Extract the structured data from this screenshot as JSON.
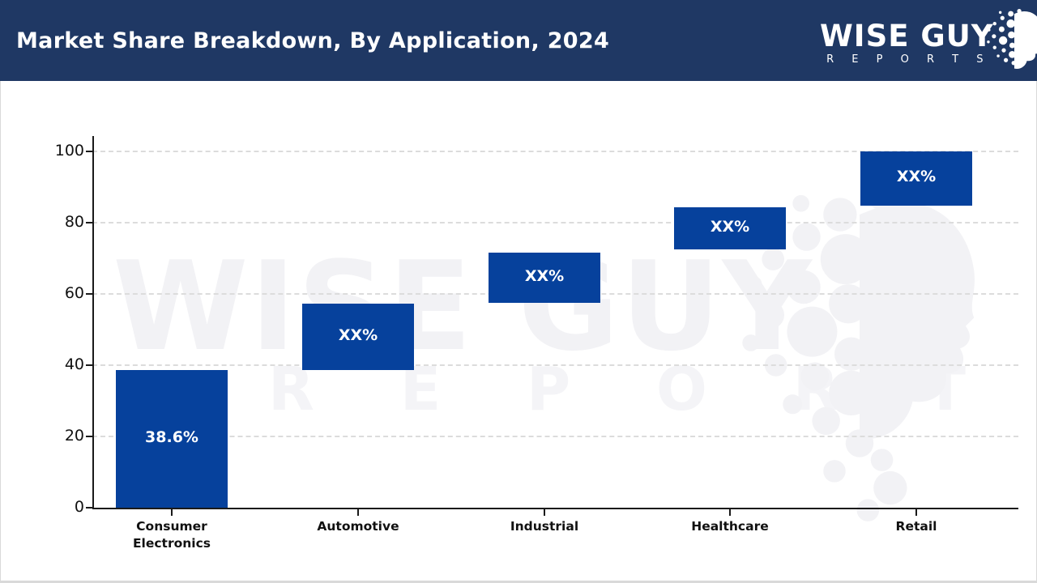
{
  "header": {
    "title": "Market Share Breakdown, By Application, 2024",
    "logo": {
      "line1": "WISE GUY",
      "line2": "R E P O R T S"
    }
  },
  "watermark": {
    "line1": "WISE GUY",
    "line2": "R E P O R T S"
  },
  "chart_data": {
    "type": "bar",
    "subtype": "waterfall",
    "title": "Market Share Breakdown, By Application, 2024",
    "categories": [
      "Consumer Electronics",
      "Automotive",
      "Industrial",
      "Healthcare",
      "Retail"
    ],
    "segments": [
      {
        "category": "Consumer Electronics",
        "start": 0,
        "end": 38.6,
        "label": "38.6%"
      },
      {
        "category": "Automotive",
        "start": 38.6,
        "end": 57.2,
        "label": "XX%"
      },
      {
        "category": "Industrial",
        "start": 57.5,
        "end": 71.6,
        "label": "XX%"
      },
      {
        "category": "Healthcare",
        "start": 72.4,
        "end": 84.3,
        "label": "XX%"
      },
      {
        "category": "Retail",
        "start": 84.8,
        "end": 100,
        "label": "XX%"
      }
    ],
    "yticks": [
      0,
      20,
      40,
      60,
      80,
      100
    ],
    "ylim": [
      0,
      104
    ],
    "xlabel": "",
    "ylabel": "",
    "grid": "horizontal-dashed",
    "legend": "none",
    "colors": {
      "bar": "#06419c",
      "bar_label": "#ffffff",
      "header_background": "#1f3864",
      "axis": "#1a1a1a",
      "gridline": "#dcdcdc"
    }
  }
}
